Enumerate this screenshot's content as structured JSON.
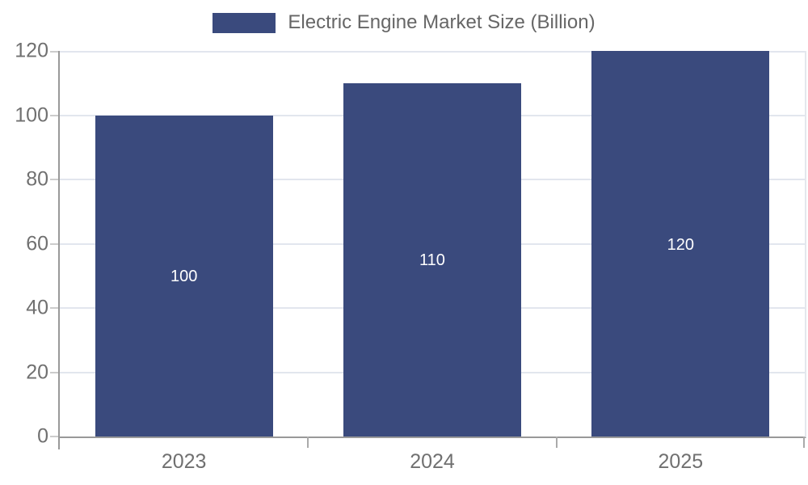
{
  "legend": {
    "label": "Electric Engine Market Size (Billion)"
  },
  "chart_data": {
    "type": "bar",
    "categories": [
      "2023",
      "2024",
      "2025"
    ],
    "series": [
      {
        "name": "Electric Engine Market Size (Billion)",
        "values": [
          100,
          110,
          120
        ]
      }
    ],
    "data_labels": [
      "100",
      "110",
      "120"
    ],
    "title": "",
    "xlabel": "",
    "ylabel": "",
    "ylim": [
      0,
      120
    ],
    "yticks": [
      0,
      20,
      40,
      60,
      80,
      100,
      120
    ],
    "grid": true,
    "legend_position": "top-center",
    "colors": {
      "bar": "#3A4A7D",
      "grid": "#E2E6EE",
      "axis": "#999999",
      "tick": "#CCCCCC",
      "axis_label": "#707070",
      "legend_text": "#666666",
      "data_label": "#FFFFFF",
      "background": "#FFFFFF"
    }
  }
}
